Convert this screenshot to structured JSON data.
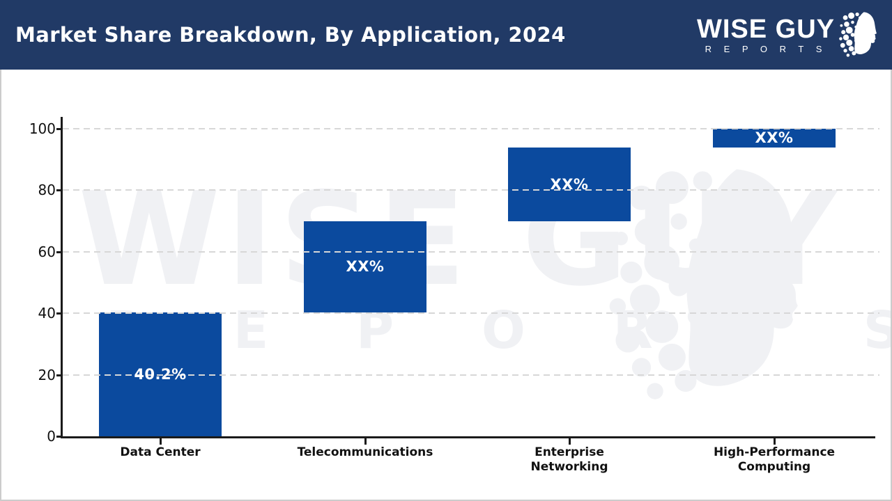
{
  "header": {
    "title": "Market Share Breakdown, By Application, 2024",
    "bg_color": "#213a66",
    "logo": {
      "name": "WISE GUY",
      "subtitle": "R E P O R T S"
    }
  },
  "watermark": {
    "line1": "WISE GUY",
    "line2": "R E P O R T S"
  },
  "chart_data": {
    "type": "bar",
    "subtype": "waterfall",
    "title": "Market Share Breakdown, By Application, 2024",
    "categories": [
      "Data Center",
      "Telecommunications",
      "Enterprise Networking",
      "High-Performance Computing"
    ],
    "category_label_lines": [
      [
        "Data Center"
      ],
      [
        "Telecommunications"
      ],
      [
        "Enterprise",
        "Networking"
      ],
      [
        "High-Performance",
        "Computing"
      ]
    ],
    "segments": [
      {
        "category": "Data Center",
        "start": 0,
        "end": 40.2,
        "label": "40.2%"
      },
      {
        "category": "Telecommunications",
        "start": 40.2,
        "end": 70,
        "label": "XX%"
      },
      {
        "category": "Enterprise Networking",
        "start": 70,
        "end": 94,
        "label": "XX%"
      },
      {
        "category": "High-Performance Computing",
        "start": 94,
        "end": 100,
        "label": "XX%"
      }
    ],
    "xlabel": "",
    "ylabel": "",
    "ylim": [
      0,
      100
    ],
    "yticks": [
      0,
      20,
      40,
      60,
      80,
      100
    ],
    "grid": "horizontal-dashed",
    "legend": "none",
    "bar_color": "#0b4a9e",
    "bar_label_color": "#ffffff"
  }
}
